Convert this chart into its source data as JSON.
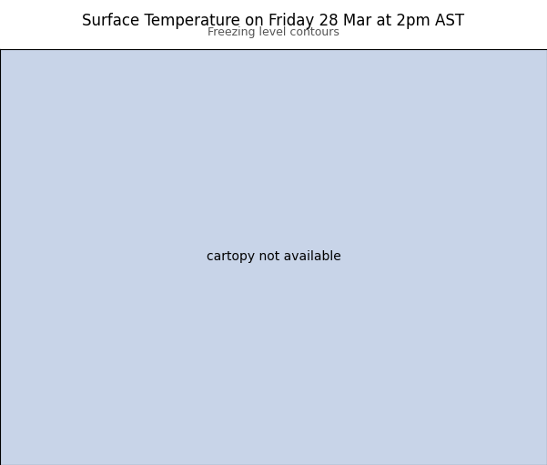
{
  "title": "Surface Temperature on Friday 28 Mar at 2pm AST",
  "subtitle": "Freezing level contours",
  "title_fontsize": 12,
  "subtitle_fontsize": 9,
  "map_bg": "#c8d4e8",
  "ocean_color": "#c8d4e8",
  "grid_color": "#aabbd0",
  "contour_color": "#ff0000",
  "figsize": [
    6.01,
    5.11
  ],
  "dpi": 100,
  "extent": [
    -90.5,
    -55.0,
    7.5,
    28.5
  ],
  "grid_lons": [
    -90,
    -85,
    -80,
    -75,
    -70,
    -65,
    -60,
    -55
  ],
  "grid_lats": [
    10,
    15,
    20,
    25
  ]
}
